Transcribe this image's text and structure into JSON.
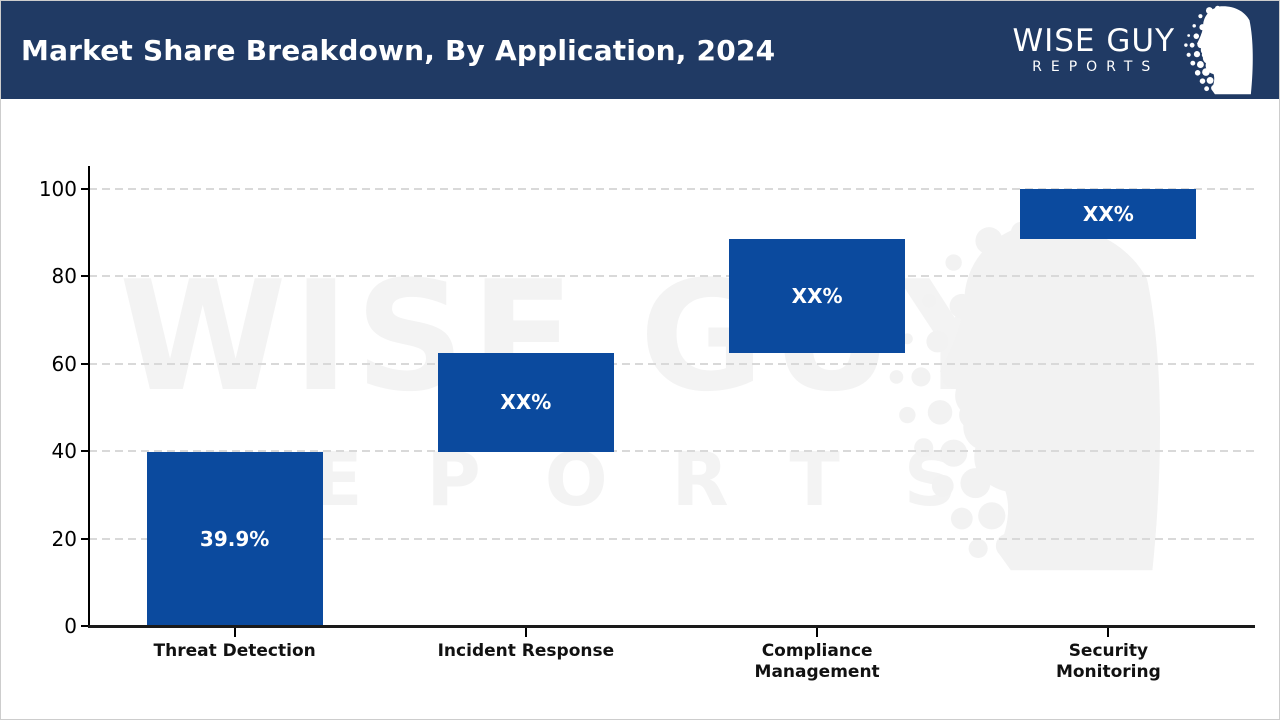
{
  "page": {
    "background": "#ffffff",
    "border_color": "#cdcdcd"
  },
  "header": {
    "background": "#203a64",
    "title": "Market Share Breakdown, By Application, 2024",
    "title_color": "#ffffff",
    "logo": {
      "name": "WISE GUY",
      "subname": "REPORTS",
      "head_icon": "dotted-head-profile"
    }
  },
  "watermark": {
    "line1": "WISE GUY",
    "line2": "REPORTS",
    "color": "#f3f3f3"
  },
  "chart_data": {
    "type": "bar",
    "subtype": "waterfall",
    "title": "Market Share Breakdown, By Application, 2024",
    "categories": [
      "Threat Detection",
      "Incident Response",
      "Compliance Management",
      "Security Monitoring"
    ],
    "x_tick_lines": [
      [
        "Threat Detection"
      ],
      [
        "Incident Response"
      ],
      [
        "Compliance",
        "Management"
      ],
      [
        "Security",
        "Monitoring"
      ]
    ],
    "segments": [
      {
        "category": "Threat Detection",
        "start": 0,
        "end": 39.9,
        "label": "39.9%"
      },
      {
        "category": "Incident Response",
        "start": 39.9,
        "end": 62.5,
        "label": "XX%"
      },
      {
        "category": "Compliance Management",
        "start": 62.5,
        "end": 88.5,
        "label": "XX%"
      },
      {
        "category": "Security Monitoring",
        "start": 88.5,
        "end": 100,
        "label": "XX%"
      }
    ],
    "yticks": [
      0,
      20,
      40,
      60,
      80,
      100
    ],
    "ylim": [
      0,
      105
    ],
    "bar_color": "#0b4a9e",
    "bar_label_color": "#ffffff",
    "axis_color": "#000000",
    "grid": {
      "show": true,
      "style": "dashed",
      "color": "#d9d9d9",
      "orientation": "horizontal"
    },
    "legend": null
  }
}
